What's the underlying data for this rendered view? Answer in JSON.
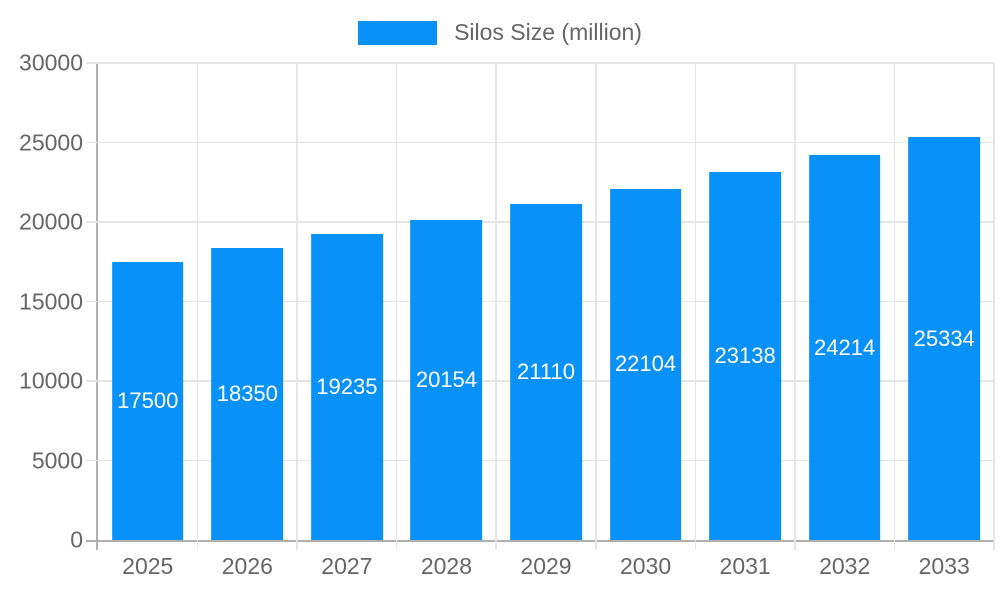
{
  "legend": {
    "label": "Silos Size (million)"
  },
  "chart_data": {
    "type": "bar",
    "title": "Silos Size (million)",
    "categories": [
      "2025",
      "2026",
      "2027",
      "2028",
      "2029",
      "2030",
      "2031",
      "2032",
      "2033"
    ],
    "values": [
      17500,
      18350,
      19235,
      20154,
      21110,
      22104,
      23138,
      24214,
      25334
    ],
    "xlabel": "",
    "ylabel": "",
    "ylim": [
      0,
      30000
    ],
    "yticks": [
      0,
      5000,
      10000,
      15000,
      20000,
      25000,
      30000
    ],
    "grid": true,
    "legend_position": "top-center",
    "value_labels": "centered-inside-bars",
    "colors": {
      "bar": "#0991fa",
      "grid": "#e5e5e5",
      "axis": "#b0b0b0",
      "tick_label": "#666666",
      "value_label": "#ffffff",
      "background": "#ffffff"
    }
  }
}
